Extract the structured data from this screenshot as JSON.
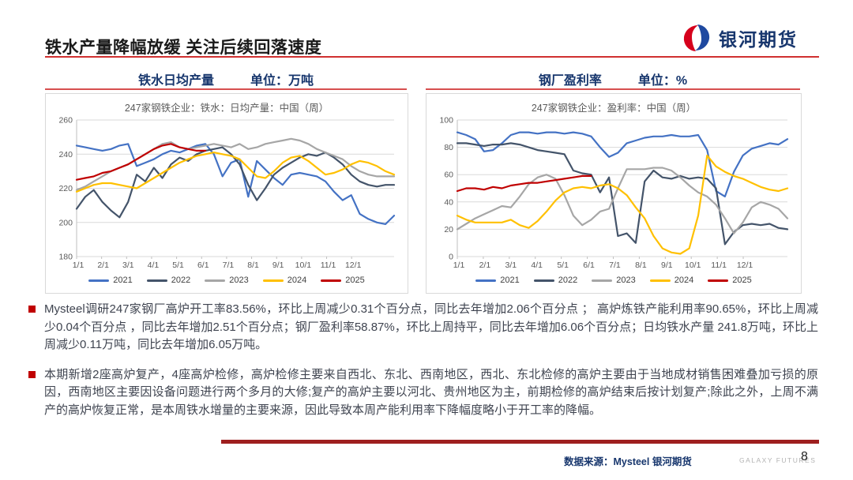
{
  "page": {
    "title": "铁水产量降幅放缓 关注后续回落速度",
    "page_number": "8"
  },
  "logo": {
    "text": "银河期货"
  },
  "footer": {
    "source": "数据来源：Mysteel 银河期货",
    "brand": "GALAXY FUTURES"
  },
  "bullets": [
    "Mysteel调研247家钢厂高炉开工率83.56%，环比上周减少0.31个百分点，同比去年增加2.06个百分点 ； 高炉炼铁产能利用率90.65%，环比上周减少0.04个百分点 ，同比去年增加2.51个百分点；钢厂盈利率58.87%，环比上周持平，同比去年增加6.06个百分点；日均铁水产量 241.8万吨，环比上周减少0.11万吨，同比去年增加6.05万吨。",
    "本期新增2座高炉复产，4座高炉检修，高炉检修主要来自西北、东北、西南地区，西北、东北检修的高炉主要由于当地成材销售困难叠加亏损的原因，西南地区主要因设备问题进行两个多月的大修;复产的高炉主要以河北、贵州地区为主，前期检修的高炉结束后按计划复产;除此之外，上周不满产的高炉恢复正常，是本周铁水增量的主要来源，因此导致本周产能利用率下降幅度略小于开工率的降幅。"
  ],
  "colors": {
    "accent_red": "#d03030",
    "bar_red": "#9e1f1f",
    "navy": "#17366d",
    "title_black": "#1a1a1a",
    "body_text": "#3f4450",
    "grid": "#d9d9d9",
    "axis_text": "#595959",
    "brand_gray": "#b3b3b3"
  },
  "chart_data": [
    {
      "type": "line",
      "header": "铁水日均产量",
      "unit": "单位：万吨",
      "inner_title": "247家钢铁企业：铁水：日均产量：中国（周）",
      "ylim": [
        180,
        260
      ],
      "yticks": [
        180,
        200,
        220,
        240,
        260
      ],
      "x_tick_labels": [
        "1/1",
        "2/1",
        "3/1",
        "4/1",
        "5/1",
        "6/1",
        "7/1",
        "8/1",
        "9/1",
        "10/1",
        "11/1",
        "12/1"
      ],
      "x_months_total": 12.7,
      "points_max": 38,
      "grid": true,
      "legend_position": "bottom",
      "series": [
        {
          "name": "2021",
          "color": "#4472C4",
          "values": [
            245,
            244,
            243,
            242,
            243,
            245,
            246,
            233,
            235,
            237,
            240,
            242,
            241,
            243,
            245,
            246,
            240,
            227,
            235,
            237,
            215,
            236,
            231,
            226,
            222,
            228,
            229,
            228,
            227,
            224,
            218,
            213,
            216,
            205,
            202,
            200,
            199,
            204
          ]
        },
        {
          "name": "2022",
          "color": "#44546A",
          "values": [
            208,
            215,
            219,
            212,
            207,
            203,
            212,
            228,
            224,
            232,
            226,
            234,
            238,
            236,
            240,
            242,
            243,
            244,
            240,
            234,
            222,
            213,
            220,
            228,
            232,
            235,
            238,
            240,
            239,
            241,
            238,
            234,
            228,
            224,
            222,
            221,
            222,
            222
          ]
        },
        {
          "name": "2023",
          "color": "#A6A6A6",
          "values": [
            219,
            221,
            224,
            227,
            230,
            232,
            234,
            237,
            240,
            243,
            246,
            247,
            244,
            243,
            244,
            245,
            246,
            245,
            244,
            246,
            243,
            244,
            246,
            247,
            248,
            249,
            248,
            246,
            243,
            241,
            239,
            237,
            233,
            230,
            228,
            227,
            227,
            227
          ]
        },
        {
          "name": "2024",
          "color": "#FFC000",
          "values": [
            218,
            220,
            222,
            223,
            223,
            222,
            221,
            220,
            223,
            226,
            229,
            232,
            235,
            237,
            239,
            240,
            241,
            240,
            239,
            237,
            232,
            227,
            226,
            230,
            235,
            238,
            239,
            236,
            232,
            228,
            229,
            231,
            234,
            236,
            235,
            233,
            230,
            228
          ]
        },
        {
          "name": "2025",
          "color": "#C00000",
          "values": [
            225,
            226,
            227,
            229,
            230,
            232,
            234,
            237,
            240,
            243,
            245,
            246,
            244,
            243,
            242,
            242
          ]
        }
      ]
    },
    {
      "type": "line",
      "header": "钢厂盈利率",
      "unit": "单位：%",
      "inner_title": "247家钢铁企业：盈利率：中国（周）",
      "ylim": [
        0,
        100
      ],
      "yticks": [
        0,
        20,
        40,
        60,
        80,
        100
      ],
      "x_tick_labels": [
        "1/1",
        "2/1",
        "3/1",
        "4/1",
        "5/1",
        "6/1",
        "7/1",
        "8/1",
        "9/1",
        "10/1",
        "11/1",
        "12/1"
      ],
      "x_months_total": 12.7,
      "points_max": 38,
      "grid": true,
      "legend_position": "bottom",
      "series": [
        {
          "name": "2021",
          "color": "#4472C4",
          "values": [
            91,
            89,
            86,
            77,
            78,
            83,
            89,
            91,
            91,
            90,
            91,
            91,
            90,
            91,
            90,
            88,
            80,
            73,
            76,
            83,
            85,
            87,
            88,
            88,
            89,
            88,
            88,
            89,
            78,
            48,
            44,
            62,
            74,
            79,
            81,
            83,
            82,
            86
          ]
        },
        {
          "name": "2022",
          "color": "#44546A",
          "values": [
            83,
            83,
            82,
            81,
            82,
            82,
            83,
            82,
            80,
            78,
            77,
            76,
            75,
            63,
            61,
            60,
            47,
            58,
            15,
            17,
            10,
            55,
            63,
            58,
            57,
            59,
            57,
            58,
            57,
            50,
            9,
            18,
            23,
            24,
            23,
            24,
            21,
            20
          ]
        },
        {
          "name": "2023",
          "color": "#A6A6A6",
          "values": [
            20,
            24,
            28,
            31,
            34,
            37,
            36,
            44,
            53,
            58,
            60,
            57,
            45,
            30,
            23,
            27,
            33,
            35,
            50,
            64,
            64,
            64,
            65,
            65,
            63,
            58,
            52,
            47,
            44,
            38,
            28,
            17,
            25,
            36,
            40,
            38,
            35,
            28
          ]
        },
        {
          "name": "2024",
          "color": "#FFC000",
          "values": [
            30,
            27,
            25,
            25,
            25,
            25,
            27,
            23,
            21,
            26,
            33,
            41,
            47,
            50,
            51,
            50,
            52,
            53,
            50,
            45,
            36,
            28,
            15,
            6,
            3,
            2,
            6,
            30,
            74,
            66,
            62,
            59,
            57,
            54,
            51,
            49,
            48,
            50
          ]
        },
        {
          "name": "2025",
          "color": "#C00000",
          "values": [
            48,
            50,
            50,
            49,
            51,
            50,
            52,
            53,
            54,
            54,
            55,
            56,
            57,
            58,
            59,
            59
          ]
        }
      ]
    }
  ]
}
